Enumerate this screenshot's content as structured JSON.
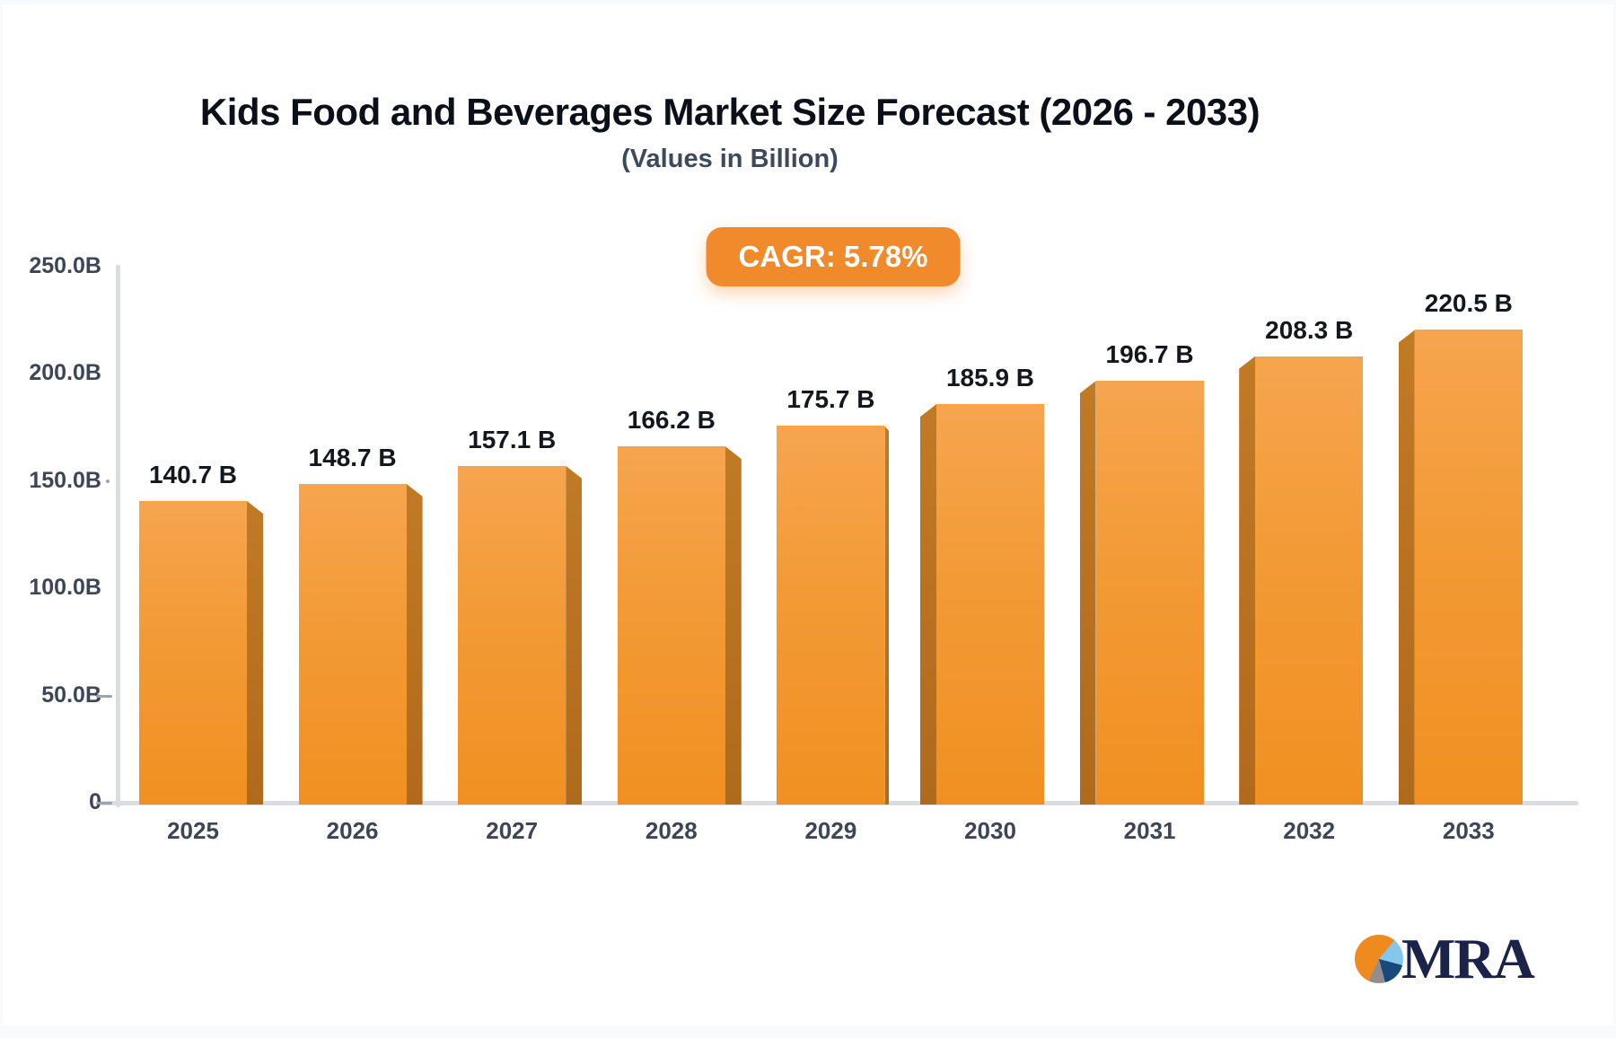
{
  "page": {
    "background": "#F8FAFC",
    "card_background": "#FFFFFF"
  },
  "header": {
    "title": "Kids Food and Beverages Market Size Forecast (2026 - 2033)",
    "subtitle": "(Values in Billion)",
    "cagr_label": "CAGR: 5.78%"
  },
  "colors": {
    "accent_orange": "#F18A2B",
    "bar_front_top": "#F6A54F",
    "bar_front_bottom": "#F19022",
    "bar_side": "#B97120",
    "axis_line": "#D9DDE2",
    "axis_text": "#3C4656",
    "title_text": "#0B0F17",
    "subtitle_text": "#3D4A5C",
    "value_text": "#14171C",
    "logo_navy": "#1B2348",
    "logo_light_blue": "#85C7EC",
    "logo_dark_blue": "#17497B",
    "logo_gray": "#948D90"
  },
  "chart_data": {
    "type": "bar",
    "style": "3d-perspective-bars",
    "title": "Kids Food and Beverages Market Size Forecast (2026 - 2033)",
    "subtitle": "(Values in Billion)",
    "cagr": "5.78%",
    "categories": [
      "2025",
      "2026",
      "2027",
      "2028",
      "2029",
      "2030",
      "2031",
      "2032",
      "2033"
    ],
    "values": [
      140.7,
      148.7,
      157.1,
      166.2,
      175.7,
      185.9,
      196.7,
      208.3,
      220.5
    ],
    "value_labels": [
      "140.7 B",
      "148.7 B",
      "157.1 B",
      "166.2 B",
      "175.7 B",
      "185.9 B",
      "196.7 B",
      "208.3 B",
      "220.5 B"
    ],
    "unit": "Billion",
    "xlabel": "",
    "ylabel": "",
    "ylim": [
      0,
      250
    ],
    "y_tick_labels": [
      "250.0B",
      "200.0B",
      "150.0B",
      "100.0B",
      "50.0B",
      "0"
    ],
    "y_tick_values": [
      250,
      200,
      150,
      100,
      50,
      0
    ],
    "grid": false,
    "legend": false
  },
  "logo": {
    "text": "MRA"
  }
}
